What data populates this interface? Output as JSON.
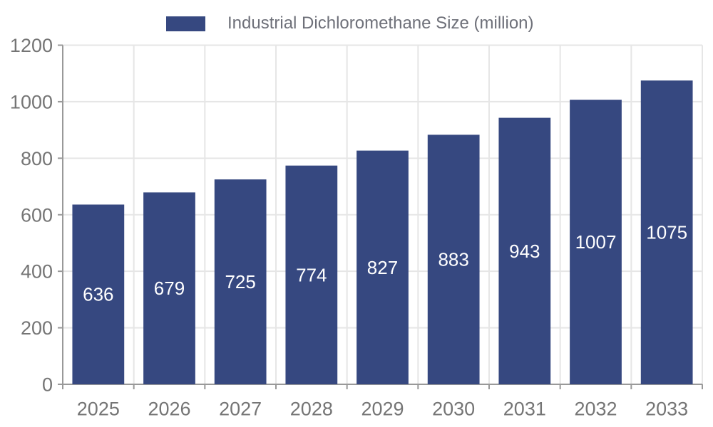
{
  "legend": {
    "label": "Industrial Dichloromethane Size (million)"
  },
  "chart_data": {
    "type": "bar",
    "title": "Industrial Dichloromethane Size (million)",
    "categories": [
      "2025",
      "2026",
      "2027",
      "2028",
      "2029",
      "2030",
      "2031",
      "2032",
      "2033"
    ],
    "values": [
      636,
      679,
      725,
      774,
      827,
      883,
      943,
      1007,
      1075
    ],
    "xlabel": "",
    "ylabel": "",
    "ylim": [
      0,
      1200
    ],
    "ytick_step": 200,
    "yticks": [
      0,
      200,
      400,
      600,
      800,
      1000,
      1200
    ],
    "grid": true,
    "legend_position": "top",
    "bar_label_position": "center",
    "colors": {
      "bar": "#364880",
      "bar_label": "#ffffff",
      "axis_text": "#757575",
      "legend_text": "#6e7079",
      "grid_line": "#e6e6e6",
      "axis_line": "#999999"
    }
  }
}
